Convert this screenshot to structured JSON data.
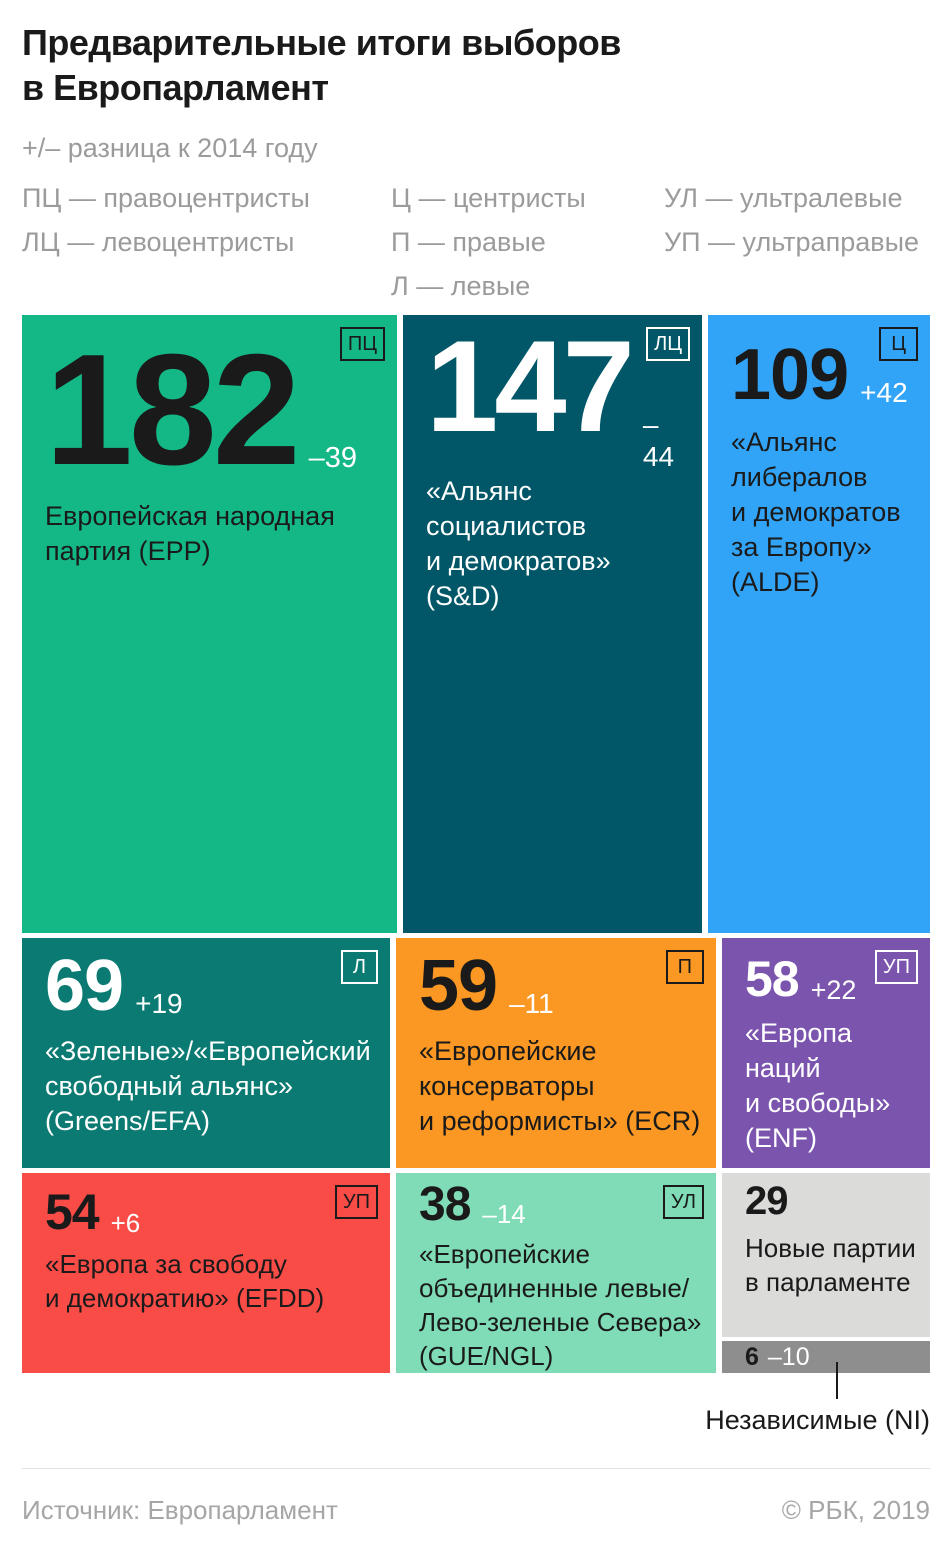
{
  "header": {
    "title_lines": [
      "Предварительные итоги выборов",
      "в Европарламент"
    ],
    "subtitle": "+/– разница к 2014 году",
    "legend_columns": [
      {
        "items": [
          "ПЦ — правоцентристы",
          "ЛЦ — левоцентристы"
        ]
      },
      {
        "items": [
          "Ц — центристы",
          "П — правые",
          "Л — левые"
        ]
      },
      {
        "items": [
          "УЛ — ультралевые",
          "УП — ультраправые"
        ]
      }
    ]
  },
  "blocks": [
    {
      "value": "182",
      "delta": "–39",
      "badge": "ПЦ",
      "name_lines": [
        "Европейская народная",
        "партия (EPP)"
      ],
      "bg": "#14b886",
      "text_color": "#1a1a1a"
    },
    {
      "value": "147",
      "delta": "–44",
      "badge": "ЛЦ",
      "name_lines": [
        "«Альянс социалистов",
        "и демократов» (S&D)"
      ],
      "bg": "#015767",
      "text_color": "#ffffff"
    },
    {
      "value": "109",
      "delta": "+42",
      "badge": "Ц",
      "name_lines": [
        "«Альянс",
        "либералов",
        "и демократов",
        "за Европу»",
        "(ALDE)"
      ],
      "bg": "#32a4f8",
      "text_color": "#1a1a1a"
    },
    {
      "value": "69",
      "delta": "+19",
      "badge": "Л",
      "name_lines": [
        "«Зеленые»/«Европейский",
        "свободный альянс»",
        "(Greens/EFA)"
      ],
      "bg": "#0b7a72",
      "text_color": "#ffffff"
    },
    {
      "value": "59",
      "delta": "–11",
      "badge": "П",
      "name_lines": [
        "«Европейские",
        "консерваторы",
        "и реформисты» (ECR)"
      ],
      "bg": "#fb9823",
      "text_color": "#1a1a1a"
    },
    {
      "value": "58",
      "delta": "+22",
      "badge": "УП",
      "name_lines": [
        "«Европа",
        "наций",
        "и свободы»",
        "(ENF)"
      ],
      "bg": "#7b54ae",
      "text_color": "#ffffff"
    },
    {
      "value": "54",
      "delta": "+6",
      "badge": "УП",
      "name_lines": [
        "«Европа за свободу",
        "и демократию» (EFDD)"
      ],
      "bg": "#f94c47",
      "text_color": "#1a1a1a"
    },
    {
      "value": "38",
      "delta": "–14",
      "badge": "УЛ",
      "name_lines": [
        "«Европейские",
        "объединенные левые/",
        "Лево-зеленые Севера»",
        "(GUE/NGL)"
      ],
      "bg": "#7fdcb7",
      "text_color": "#1a1a1a"
    },
    {
      "value": "29",
      "name_lines": [
        "Новые партии",
        "в парламенте"
      ],
      "bg": "#dbdbda",
      "text_color": "#1a1a1a"
    },
    {
      "value": "6",
      "delta": "–10",
      "bg": "#8e8e8e",
      "text_color": "#1a1a1a"
    }
  ],
  "independents": {
    "label": "Независимые (NI)"
  },
  "footer": {
    "source": "Источник: Европарламент",
    "copyright": "© РБК, 2019"
  },
  "chart_data": {
    "type": "treemap",
    "title": "Предварительные итоги выборов в Европарламент",
    "note": "+/– разница к 2014 году",
    "legend": {
      "ПЦ": "правоцентристы",
      "ЛЦ": "левоцентристы",
      "Ц": "центристы",
      "П": "правые",
      "Л": "левые",
      "УЛ": "ультралевые",
      "УП": "ультраправые"
    },
    "series": [
      {
        "label": "Европейская народная партия (EPP)",
        "seats": 182,
        "change": -39,
        "orientation": "ПЦ",
        "color": "#14b886"
      },
      {
        "label": "«Альянс социалистов и демократов» (S&D)",
        "seats": 147,
        "change": -44,
        "orientation": "ЛЦ",
        "color": "#015767"
      },
      {
        "label": "«Альянс либералов и демократов за Европу» (ALDE)",
        "seats": 109,
        "change": 42,
        "orientation": "Ц",
        "color": "#32a4f8"
      },
      {
        "label": "«Зеленые»/«Европейский свободный альянс» (Greens/EFA)",
        "seats": 69,
        "change": 19,
        "orientation": "Л",
        "color": "#0b7a72"
      },
      {
        "label": "«Европейские консерваторы и реформисты» (ECR)",
        "seats": 59,
        "change": -11,
        "orientation": "П",
        "color": "#fb9823"
      },
      {
        "label": "«Европа наций и свободы» (ENF)",
        "seats": 58,
        "change": 22,
        "orientation": "УП",
        "color": "#7b54ae"
      },
      {
        "label": "«Европа за свободу и демократию» (EFDD)",
        "seats": 54,
        "change": 6,
        "orientation": "УП",
        "color": "#f94c47"
      },
      {
        "label": "«Европейские объединенные левые/Лево-зеленые Севера» (GUE/NGL)",
        "seats": 38,
        "change": -14,
        "orientation": "УЛ",
        "color": "#7fdcb7"
      },
      {
        "label": "Новые партии в парламенте",
        "seats": 29,
        "change": null,
        "orientation": null,
        "color": "#dbdbda"
      },
      {
        "label": "Независимые (NI)",
        "seats": 6,
        "change": -10,
        "orientation": null,
        "color": "#8e8e8e"
      }
    ],
    "source": "Европарламент"
  }
}
